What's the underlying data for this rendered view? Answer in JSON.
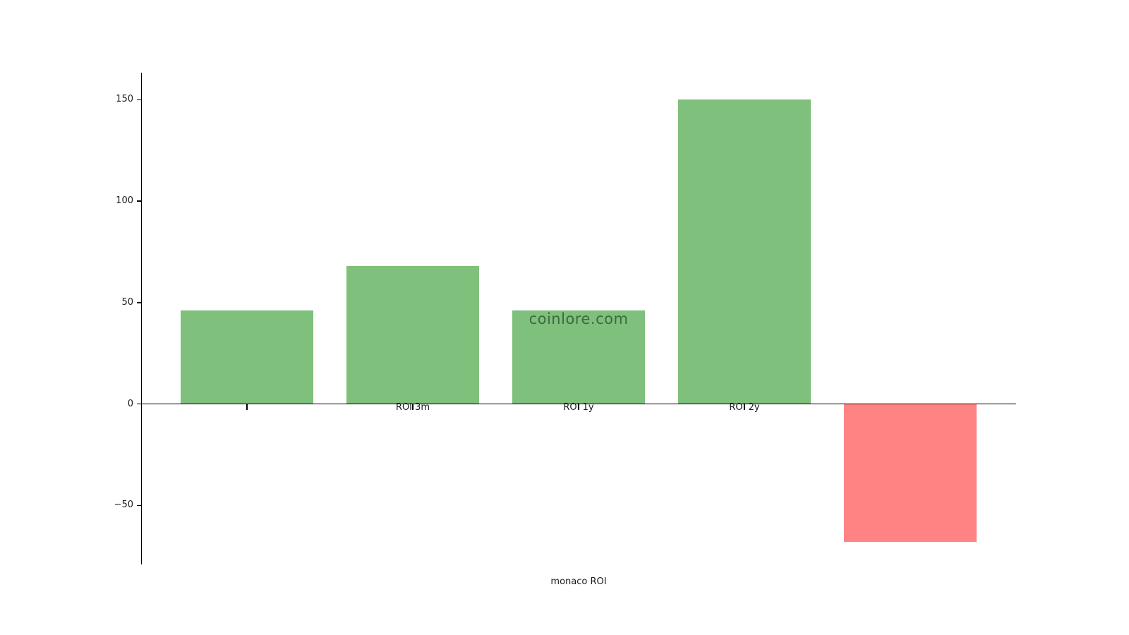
{
  "figure": {
    "watermark": "coinlore.com"
  },
  "chart_data": {
    "type": "bar",
    "title": "",
    "xlabel": "monaco ROI",
    "ylabel": "",
    "categories": [
      "",
      "ROI 3m",
      "ROI 1y",
      "ROI 2y",
      ""
    ],
    "values": [
      46,
      68,
      46,
      150,
      -68
    ],
    "y_ticks": [
      150,
      100,
      50,
      0,
      -50
    ],
    "ylim": [
      -79,
      163
    ],
    "grid": false,
    "legend_position": "none",
    "colors": {
      "positive_bar": "#7fc07c",
      "negative_bar": "#ff8383",
      "axis": "#000000",
      "tick_label": "#1a1a1a",
      "watermark": "#3c6b3f"
    }
  }
}
